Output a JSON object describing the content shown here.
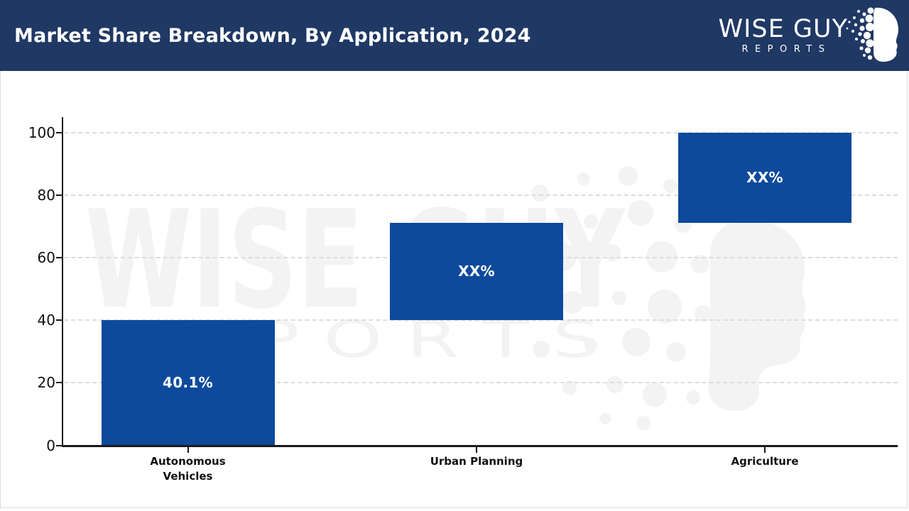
{
  "header": {
    "title": "Market Share Breakdown, By Application, 2024",
    "logo": {
      "line1": "WISE GUY",
      "line2": "REPORTS"
    }
  },
  "watermark": {
    "line1": "WISE GUY",
    "line2": "R E P O R T S"
  },
  "chart_data": {
    "type": "bar",
    "subtype": "floating-waterfall",
    "title": "Market Share Breakdown, By Application, 2024",
    "categories": [
      "Autonomous Vehicles",
      "Urban Planning",
      "Agriculture"
    ],
    "category_lines": [
      [
        "Autonomous",
        "Vehicles"
      ],
      [
        "Urban Planning"
      ],
      [
        "Agriculture"
      ]
    ],
    "segments": [
      {
        "category": "Autonomous Vehicles",
        "start": 0,
        "end": 40.1,
        "label": "40.1%"
      },
      {
        "category": "Urban Planning",
        "start": 40.1,
        "end": 71.2,
        "label": "XX%"
      },
      {
        "category": "Agriculture",
        "start": 71.2,
        "end": 100,
        "label": "XX%"
      }
    ],
    "yticks": [
      0,
      20,
      40,
      60,
      80,
      100
    ],
    "ylim": [
      0,
      100
    ],
    "grid": "horizontal-dashed",
    "legend": "none",
    "bar_color": "#0d4a9c",
    "bar_label_color": "#ffffff"
  },
  "colors": {
    "header_bg": "#1f3864",
    "bar": "#0d4a9c",
    "axis": "#1a1a1a",
    "gridline": "#dcdcdc",
    "watermark": "#f3f3f3",
    "card_border": "#d9d9d9",
    "text": "#111111"
  }
}
